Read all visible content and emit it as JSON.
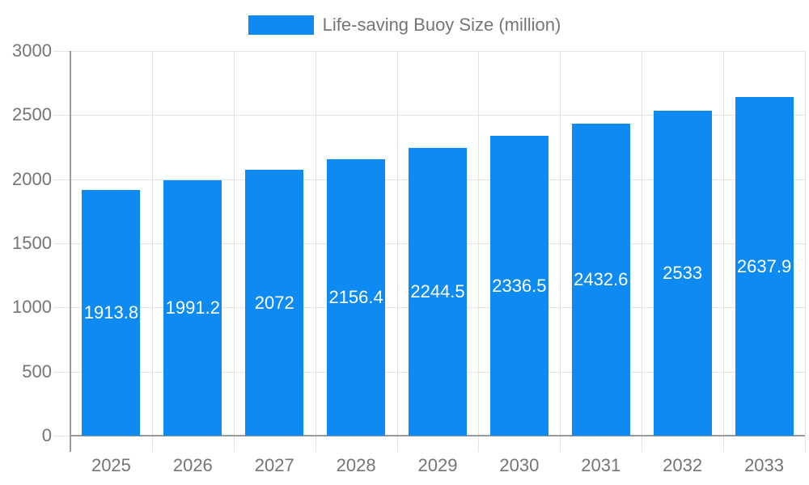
{
  "chart_data": {
    "type": "bar",
    "title": "Life-saving Buoy Size (million)",
    "categories": [
      "2025",
      "2026",
      "2027",
      "2028",
      "2029",
      "2030",
      "2031",
      "2032",
      "2033"
    ],
    "values": [
      1913.8,
      1991.2,
      2072,
      2156.4,
      2244.5,
      2336.5,
      2432.6,
      2533,
      2637.9
    ],
    "series_name": "Life-saving Buoy Size (million)",
    "xlabel": "",
    "ylabel": "",
    "ylim": [
      0,
      3000
    ],
    "yticks": [
      0,
      500,
      1000,
      1500,
      2000,
      2500,
      3000
    ],
    "grid": true,
    "legend_position": "top-center",
    "bar_value_labels": "inside-middle",
    "colors": {
      "bar": "#0d8bf2",
      "grid": "#e3e3e3",
      "tick": "#e3e3e3",
      "axis": "#9a9a9a",
      "text": "#757575",
      "bar_label": "#ffffff",
      "background": "#ffffff"
    }
  }
}
